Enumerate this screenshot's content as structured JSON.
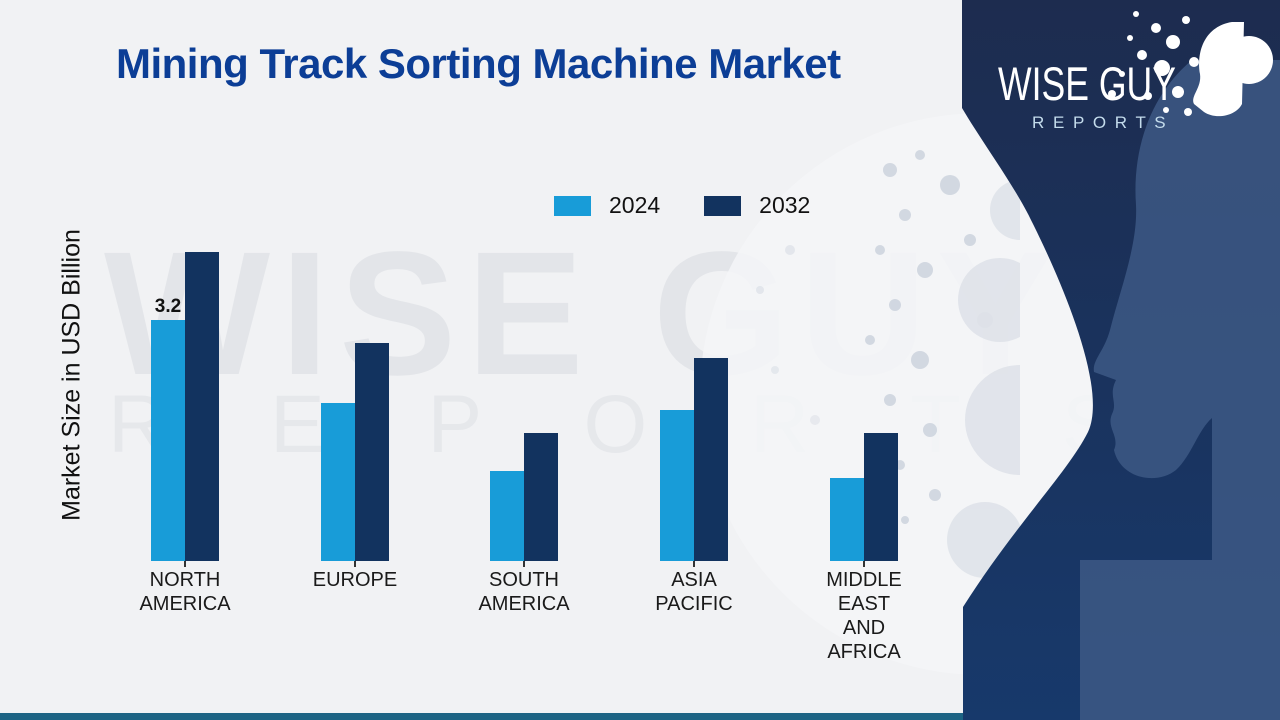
{
  "page": {
    "title": "Mining Track Sorting Machine Market"
  },
  "logo": {
    "brand": "WISE GUY",
    "sub": "R E P O R T S"
  },
  "watermark": {
    "line1": "WISE GUY",
    "line2": "R E P O R T S"
  },
  "chart_data": {
    "type": "bar",
    "title": "Mining Track Sorting Machine Market",
    "xlabel": "",
    "ylabel": "Market Size in USD Billion",
    "categories": [
      "NORTH AMERICA",
      "EUROPE",
      "SOUTH AMERICA",
      "ASIA PACIFIC",
      "MIDDLE EAST AND AFRICA"
    ],
    "series": [
      {
        "name": "2024",
        "color": "#189cd8",
        "values": [
          3.2,
          2.1,
          1.2,
          2.0,
          1.1
        ]
      },
      {
        "name": "2032",
        "color": "#12335f",
        "values": [
          4.1,
          2.9,
          1.7,
          2.7,
          1.7
        ]
      }
    ],
    "bar_labels": [
      {
        "series": "2024",
        "category_index": 0,
        "text": "3.2"
      }
    ],
    "ylim": [
      0,
      4.6
    ],
    "grid": false,
    "legend_position": "top-center",
    "axis_line": false
  },
  "colors": {
    "title": "#0c3e96",
    "bar_2024": "#189cd8",
    "bar_2032": "#12335f",
    "brand_navy_top": "#1d2c4f",
    "brand_navy_bottom": "#17396b",
    "teal_strip": "#1d6484",
    "background": "#f1f2f4",
    "watermark": "#d9dce1",
    "face_profile": "#3e5a86"
  }
}
